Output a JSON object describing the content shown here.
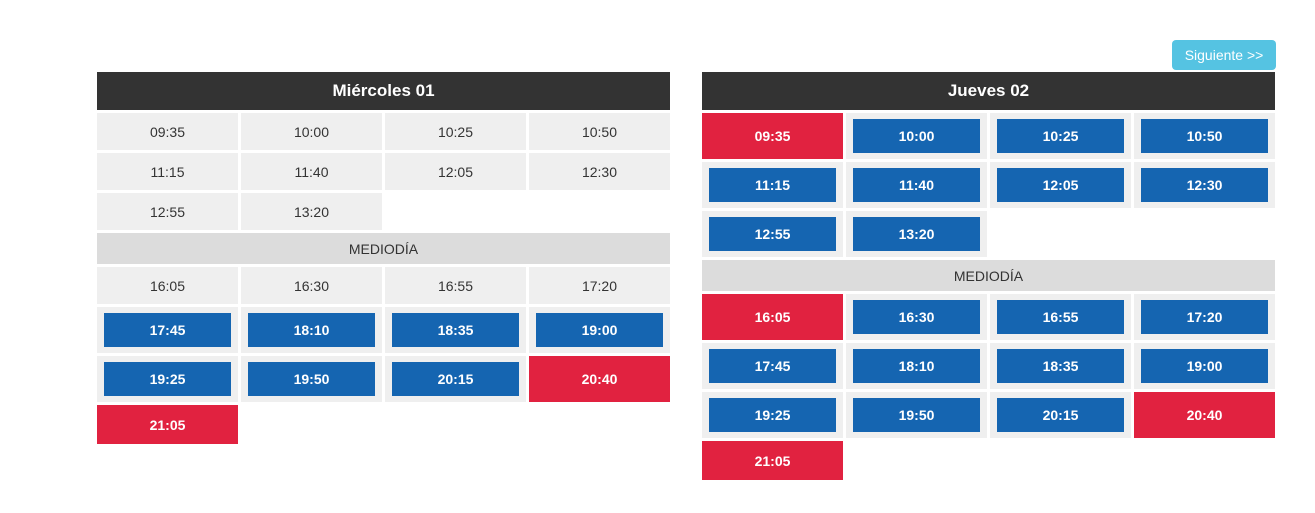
{
  "next_button": {
    "label": "Siguiente >>"
  },
  "colors": {
    "header_bg": "#333333",
    "header_text": "#ffffff",
    "cell_bg": "#efefef",
    "cell_text": "#333333",
    "divider_bg": "#dcdcdc",
    "available_bg": "#1565b1",
    "available_text": "#ffffff",
    "selected_bg": "#e12240",
    "selected_text": "#ffffff",
    "next_bg": "#55c3e2"
  },
  "tables": [
    {
      "title": "Miércoles 01",
      "rows": [
        {
          "cells": [
            {
              "time": "09:35",
              "state": "plain"
            },
            {
              "time": "10:00",
              "state": "plain"
            },
            {
              "time": "10:25",
              "state": "plain"
            },
            {
              "time": "10:50",
              "state": "plain"
            }
          ]
        },
        {
          "cells": [
            {
              "time": "11:15",
              "state": "plain"
            },
            {
              "time": "11:40",
              "state": "plain"
            },
            {
              "time": "12:05",
              "state": "plain"
            },
            {
              "time": "12:30",
              "state": "plain"
            }
          ]
        },
        {
          "cells": [
            {
              "time": "12:55",
              "state": "plain"
            },
            {
              "time": "13:20",
              "state": "plain"
            },
            {
              "state": "empty"
            },
            {
              "state": "empty"
            }
          ]
        },
        {
          "divider": "MEDIODÍA"
        },
        {
          "cells": [
            {
              "time": "16:05",
              "state": "plain"
            },
            {
              "time": "16:30",
              "state": "plain"
            },
            {
              "time": "16:55",
              "state": "plain"
            },
            {
              "time": "17:20",
              "state": "plain"
            }
          ]
        },
        {
          "cells": [
            {
              "time": "17:45",
              "state": "available"
            },
            {
              "time": "18:10",
              "state": "available"
            },
            {
              "time": "18:35",
              "state": "available"
            },
            {
              "time": "19:00",
              "state": "available"
            }
          ]
        },
        {
          "cells": [
            {
              "time": "19:25",
              "state": "available"
            },
            {
              "time": "19:50",
              "state": "available"
            },
            {
              "time": "20:15",
              "state": "available"
            },
            {
              "time": "20:40",
              "state": "selected"
            }
          ]
        },
        {
          "cells": [
            {
              "time": "21:05",
              "state": "selected"
            },
            {
              "state": "empty"
            },
            {
              "state": "empty"
            },
            {
              "state": "empty"
            }
          ]
        }
      ]
    },
    {
      "title": "Jueves 02",
      "rows": [
        {
          "cells": [
            {
              "time": "09:35",
              "state": "selected"
            },
            {
              "time": "10:00",
              "state": "available"
            },
            {
              "time": "10:25",
              "state": "available"
            },
            {
              "time": "10:50",
              "state": "available"
            }
          ]
        },
        {
          "cells": [
            {
              "time": "11:15",
              "state": "available"
            },
            {
              "time": "11:40",
              "state": "available"
            },
            {
              "time": "12:05",
              "state": "available"
            },
            {
              "time": "12:30",
              "state": "available"
            }
          ]
        },
        {
          "cells": [
            {
              "time": "12:55",
              "state": "available"
            },
            {
              "time": "13:20",
              "state": "available"
            },
            {
              "state": "empty"
            },
            {
              "state": "empty"
            }
          ]
        },
        {
          "divider": "MEDIODÍA"
        },
        {
          "cells": [
            {
              "time": "16:05",
              "state": "selected"
            },
            {
              "time": "16:30",
              "state": "available"
            },
            {
              "time": "16:55",
              "state": "available"
            },
            {
              "time": "17:20",
              "state": "available"
            }
          ]
        },
        {
          "cells": [
            {
              "time": "17:45",
              "state": "available"
            },
            {
              "time": "18:10",
              "state": "available"
            },
            {
              "time": "18:35",
              "state": "available"
            },
            {
              "time": "19:00",
              "state": "available"
            }
          ]
        },
        {
          "cells": [
            {
              "time": "19:25",
              "state": "available"
            },
            {
              "time": "19:50",
              "state": "available"
            },
            {
              "time": "20:15",
              "state": "available"
            },
            {
              "time": "20:40",
              "state": "selected"
            }
          ]
        },
        {
          "cells": [
            {
              "time": "21:05",
              "state": "selected"
            },
            {
              "state": "empty"
            },
            {
              "state": "empty"
            },
            {
              "state": "empty"
            }
          ]
        }
      ]
    }
  ]
}
